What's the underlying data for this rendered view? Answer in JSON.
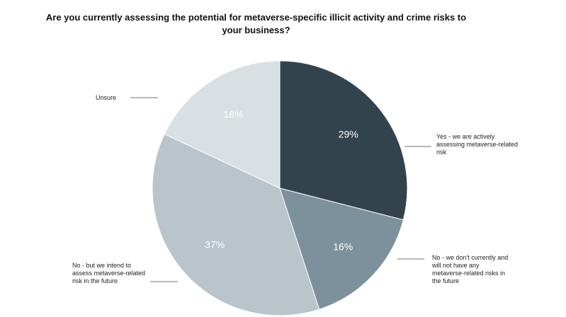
{
  "chart_data": {
    "type": "pie",
    "title": "Are you currently assessing the potential for metaverse-specific illicit activity and crime risks to your business?",
    "title_lines": [
      "Are you currently assessing the potential for metaverse-specific illicit activity and crime risks to",
      "your business?"
    ],
    "slices": [
      {
        "label": "Yes - we are actively assessing metaverse-related risk",
        "label_lines": [
          "Yes - we are actively",
          "assessing metaverse-related",
          "risk"
        ],
        "value": 29,
        "display": "29%",
        "color": "#33434d"
      },
      {
        "label": "No - we don't currently and will not have any metaverse-related risks in the future",
        "label_lines": [
          "No - we don't currently and",
          "will not have any",
          "metaverse-related risks in",
          "the future"
        ],
        "value": 16,
        "display": "16%",
        "color": "#7d919c"
      },
      {
        "label": "No - but we intend to assess metaverse-related risk in the future",
        "label_lines": [
          "No - but we intend to",
          "assess metaverse-related",
          "risk in the future"
        ],
        "value": 37,
        "display": "37%",
        "color": "#b9c4cb"
      },
      {
        "label": "Unsure",
        "label_lines": [
          "Unsure"
        ],
        "value": 18,
        "display": "18%",
        "color": "#d9e0e4"
      }
    ],
    "start_angle_deg": 0,
    "direction": "clockwise",
    "legend": "callout-labels"
  }
}
